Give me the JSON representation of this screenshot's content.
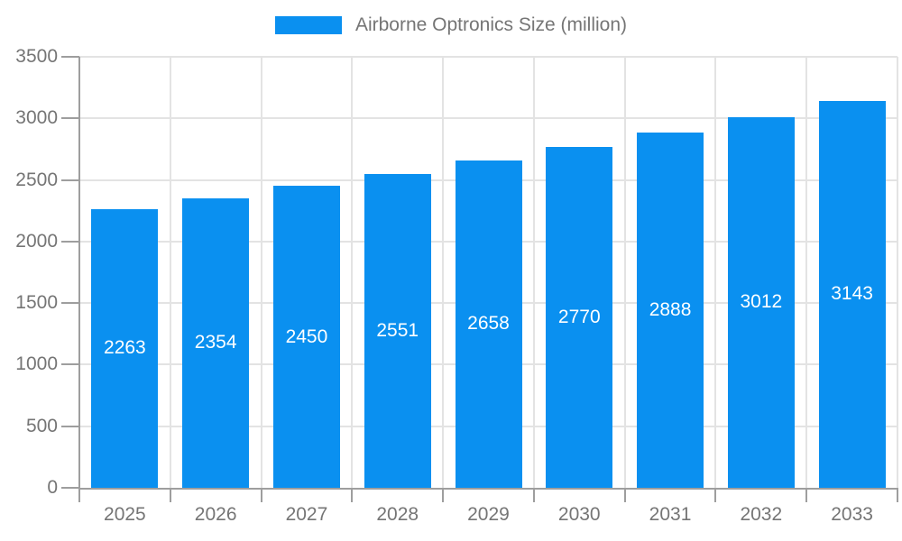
{
  "chart_data": {
    "type": "bar",
    "title": "Airborne Optronics Size (million)",
    "categories": [
      "2025",
      "2026",
      "2027",
      "2028",
      "2029",
      "2030",
      "2031",
      "2032",
      "2033"
    ],
    "values": [
      2263,
      2354,
      2450,
      2551,
      2658,
      2770,
      2888,
      3012,
      3143
    ],
    "xlabel": "",
    "ylabel": "",
    "ylim": [
      0,
      3500
    ],
    "ytick_step": 500,
    "ytick_labels": [
      "0",
      "500",
      "1000",
      "1500",
      "2000",
      "2500",
      "3000",
      "3500"
    ],
    "grid": true,
    "legend_position": "top",
    "value_labels": "inside-center",
    "colors": {
      "bar": "#0a90f0",
      "bar_label_text": "#ffffff",
      "axis_text": "#757575",
      "axis_line": "#9e9e9e",
      "gridline": "#e3e3e3",
      "background": "#ffffff"
    }
  },
  "legend": {
    "label": "Airborne Optronics Size (million)"
  }
}
